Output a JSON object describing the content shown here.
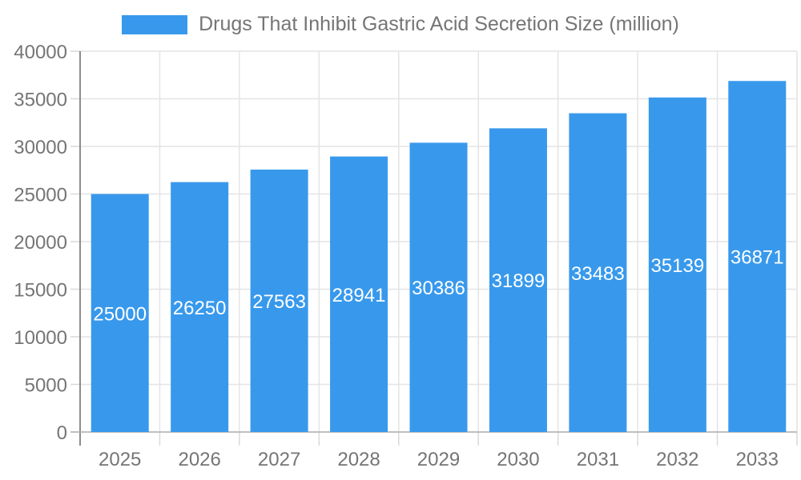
{
  "legend": {
    "label": "Drugs That Inhibit Gastric Acid Secretion Size (million)"
  },
  "chart_data": {
    "type": "bar",
    "title": "Drugs That Inhibit Gastric Acid Secretion Size (million)",
    "categories": [
      "2025",
      "2026",
      "2027",
      "2028",
      "2029",
      "2030",
      "2031",
      "2032",
      "2033"
    ],
    "values": [
      25000,
      26250,
      27563,
      28941,
      30386,
      31899,
      33483,
      35139,
      36871
    ],
    "xlabel": "",
    "ylabel": "",
    "ylim": [
      0,
      40000
    ],
    "ytick_step": 5000,
    "ytick_labels": [
      "0",
      "5000",
      "10000",
      "15000",
      "20000",
      "25000",
      "30000",
      "35000",
      "40000"
    ],
    "grid": true,
    "legend_position": "top",
    "value_labels_inside_bars": true,
    "style": {
      "bar_color": "#3899EC",
      "value_label_color": "#FFFFFF",
      "axis_text_color": "#757575",
      "grid_color": "#E4E4E4",
      "tick_color": "#D9D9D9",
      "y_axis_line_color": "#8C8C8C",
      "x_axis_line_color": "#B0B0B0",
      "background_color": "#FFFFFF"
    }
  }
}
